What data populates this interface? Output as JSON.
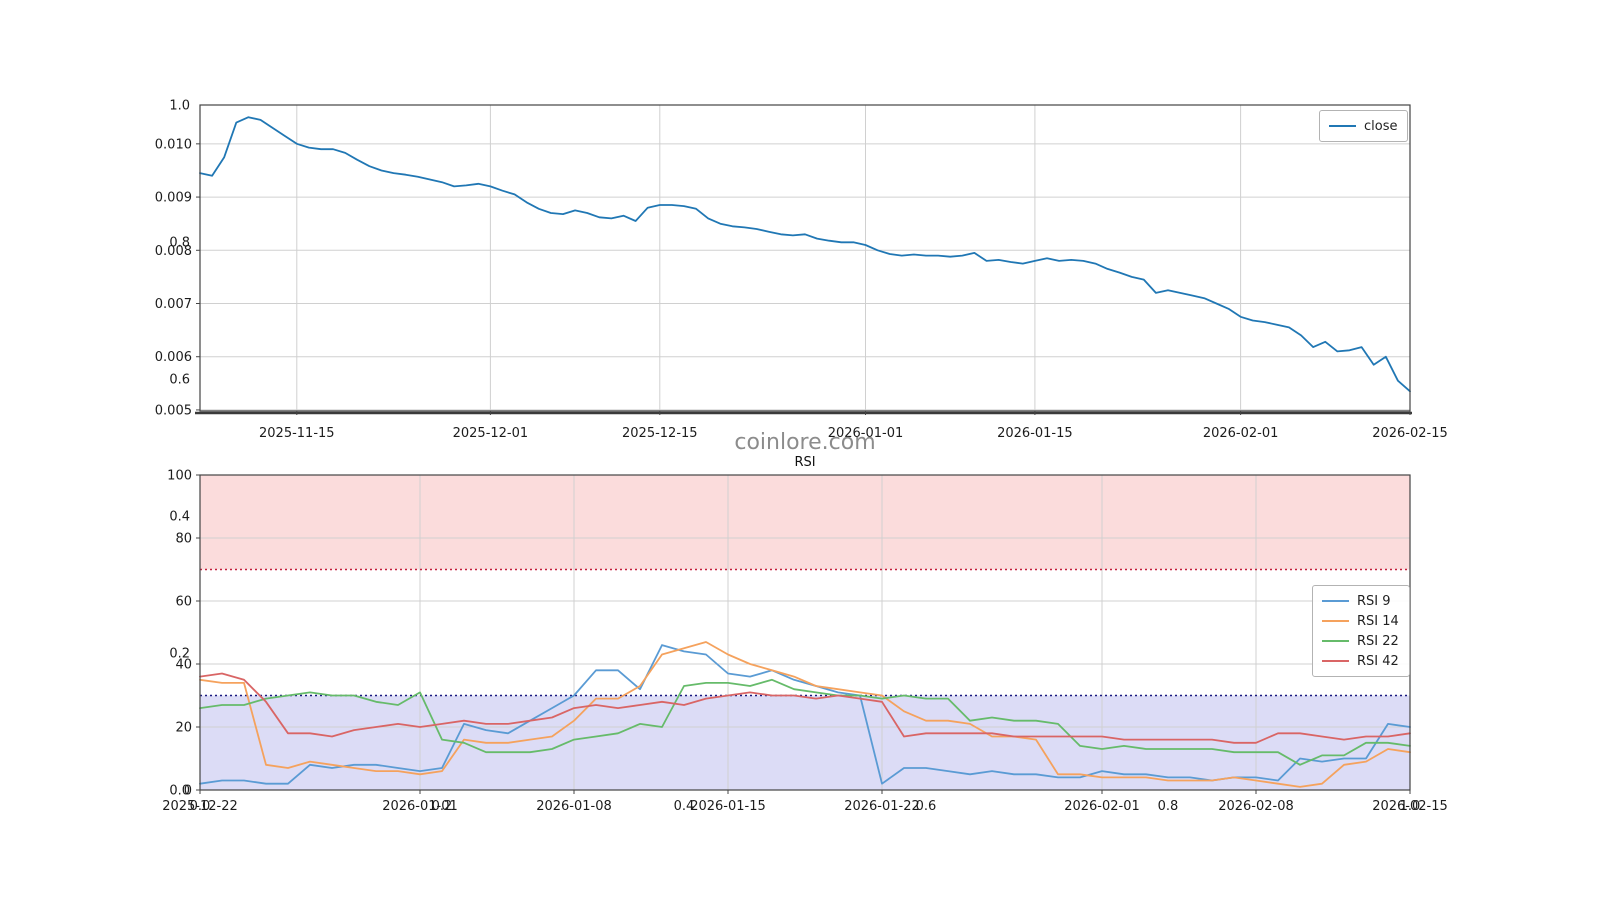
{
  "watermark": "coinlore.com",
  "figure_overlay_axis": {
    "x_labels": [
      "0.0",
      "0.2",
      "0.4",
      "0.6",
      "0.8",
      "1.0"
    ],
    "y_labels": [
      "0.0",
      "0.2",
      "0.4",
      "0.6",
      "0.8",
      "1.0"
    ]
  },
  "chart_data": [
    {
      "type": "line",
      "title": "",
      "legend_position": "upper right",
      "grid": true,
      "x_start_date": "2025-11-07",
      "x_end_date": "2026-02-15",
      "xlim_days": [
        0,
        100
      ],
      "ylim": [
        0.00498,
        0.01073
      ],
      "x_ticks": [
        {
          "d": 8,
          "label": "2025-11-15"
        },
        {
          "d": 24,
          "label": "2025-12-01"
        },
        {
          "d": 38,
          "label": "2025-12-15"
        },
        {
          "d": 55,
          "label": "2026-01-01"
        },
        {
          "d": 69,
          "label": "2026-01-15"
        },
        {
          "d": 86,
          "label": "2026-02-01"
        },
        {
          "d": 100,
          "label": "2026-02-15"
        }
      ],
      "y_ticks": [
        {
          "v": 0.005,
          "label": "0.005"
        },
        {
          "v": 0.006,
          "label": "0.006"
        },
        {
          "v": 0.007,
          "label": "0.007"
        },
        {
          "v": 0.008,
          "label": "0.008"
        },
        {
          "v": 0.009,
          "label": "0.009"
        },
        {
          "v": 0.01,
          "label": "0.010"
        }
      ],
      "series": [
        {
          "name": "close",
          "color": "#2077b4",
          "values": [
            0.00945,
            0.0094,
            0.00975,
            0.0104,
            0.0105,
            0.01045,
            0.0103,
            0.01015,
            0.01,
            0.00993,
            0.0099,
            0.0099,
            0.00983,
            0.0097,
            0.00958,
            0.0095,
            0.00945,
            0.00942,
            0.00938,
            0.00933,
            0.00928,
            0.0092,
            0.00922,
            0.00925,
            0.0092,
            0.00912,
            0.00905,
            0.0089,
            0.00878,
            0.0087,
            0.00868,
            0.00875,
            0.0087,
            0.00862,
            0.0086,
            0.00865,
            0.00855,
            0.0088,
            0.00885,
            0.00885,
            0.00883,
            0.00878,
            0.0086,
            0.0085,
            0.00845,
            0.00843,
            0.0084,
            0.00835,
            0.0083,
            0.00828,
            0.0083,
            0.00822,
            0.00818,
            0.00815,
            0.00815,
            0.0081,
            0.008,
            0.00793,
            0.0079,
            0.00792,
            0.0079,
            0.0079,
            0.00788,
            0.0079,
            0.00795,
            0.0078,
            0.00782,
            0.00778,
            0.00775,
            0.0078,
            0.00785,
            0.0078,
            0.00782,
            0.0078,
            0.00775,
            0.00765,
            0.00758,
            0.0075,
            0.00745,
            0.0072,
            0.00725,
            0.0072,
            0.00715,
            0.0071,
            0.007,
            0.0069,
            0.00675,
            0.00668,
            0.00665,
            0.0066,
            0.00655,
            0.0064,
            0.00618,
            0.00628,
            0.0061,
            0.00612,
            0.00618,
            0.00585,
            0.006,
            0.00555,
            0.00535
          ]
        }
      ]
    },
    {
      "type": "line",
      "title": "RSI",
      "legend_position": "right",
      "grid": true,
      "x_start_date": "2025-12-22",
      "x_end_date": "2026-02-15",
      "xlim_days": [
        0,
        55
      ],
      "ylim": [
        0,
        100
      ],
      "x_ticks": [
        {
          "d": 0,
          "label": "2025-12-22"
        },
        {
          "d": 10,
          "label": "2026-01-01"
        },
        {
          "d": 17,
          "label": "2026-01-08"
        },
        {
          "d": 24,
          "label": "2026-01-15"
        },
        {
          "d": 31,
          "label": "2026-01-22"
        },
        {
          "d": 41,
          "label": "2026-02-01"
        },
        {
          "d": 48,
          "label": "2026-02-08"
        },
        {
          "d": 55,
          "label": "2026-02-15"
        }
      ],
      "y_ticks": [
        {
          "v": 0,
          "label": "0"
        },
        {
          "v": 20,
          "label": "20"
        },
        {
          "v": 40,
          "label": "40"
        },
        {
          "v": 60,
          "label": "60"
        },
        {
          "v": 80,
          "label": "80"
        },
        {
          "v": 100,
          "label": "100"
        }
      ],
      "bands": [
        {
          "name": "overbought",
          "from": 70,
          "to": 100,
          "color": "#fbdcdc"
        },
        {
          "name": "oversold",
          "from": 0,
          "to": 30,
          "color": "#dcdcf6"
        }
      ],
      "ref_lines": [
        {
          "v": 70,
          "color": "#c21f3a",
          "style": "dotted",
          "name": "overbought-threshold"
        },
        {
          "v": 30,
          "color": "#191980",
          "style": "dotted",
          "name": "oversold-threshold"
        }
      ],
      "series": [
        {
          "name": "RSI 9",
          "color": "#5a9bd4",
          "values": [
            2,
            3,
            3,
            2,
            2,
            8,
            7,
            8,
            8,
            7,
            6,
            7,
            21,
            19,
            18,
            22,
            26,
            30,
            38,
            38,
            32,
            46,
            44,
            43,
            37,
            36,
            38,
            35,
            33,
            31,
            30,
            2,
            7,
            7,
            6,
            5,
            6,
            5,
            5,
            4,
            4,
            6,
            5,
            5,
            4,
            4,
            3,
            4,
            4,
            3,
            10,
            9,
            10,
            10,
            21,
            20
          ]
        },
        {
          "name": "RSI 14",
          "color": "#f5a25d",
          "values": [
            35,
            34,
            34,
            8,
            7,
            9,
            8,
            7,
            6,
            6,
            5,
            6,
            16,
            15,
            15,
            16,
            17,
            22,
            29,
            29,
            33,
            43,
            45,
            47,
            43,
            40,
            38,
            36,
            33,
            32,
            31,
            30,
            25,
            22,
            22,
            21,
            17,
            17,
            16,
            5,
            5,
            4,
            4,
            4,
            3,
            3,
            3,
            4,
            3,
            2,
            1,
            2,
            8,
            9,
            13,
            12
          ]
        },
        {
          "name": "RSI 22",
          "color": "#66bb6a",
          "values": [
            26,
            27,
            27,
            29,
            30,
            31,
            30,
            30,
            28,
            27,
            31,
            16,
            15,
            12,
            12,
            12,
            13,
            16,
            17,
            18,
            21,
            20,
            33,
            34,
            34,
            33,
            35,
            32,
            31,
            30,
            30,
            29,
            30,
            29,
            29,
            22,
            23,
            22,
            22,
            21,
            14,
            13,
            14,
            13,
            13,
            13,
            13,
            12,
            12,
            12,
            8,
            11,
            11,
            15,
            15,
            14
          ]
        },
        {
          "name": "RSI 42",
          "color": "#d96565",
          "values": [
            36,
            37,
            35,
            28,
            18,
            18,
            17,
            19,
            20,
            21,
            20,
            21,
            22,
            21,
            21,
            22,
            23,
            26,
            27,
            26,
            27,
            28,
            27,
            29,
            30,
            31,
            30,
            30,
            29,
            30,
            29,
            28,
            17,
            18,
            18,
            18,
            18,
            17,
            17,
            17,
            17,
            17,
            16,
            16,
            16,
            16,
            16,
            15,
            15,
            18,
            18,
            17,
            16,
            17,
            17,
            18
          ]
        }
      ]
    }
  ]
}
